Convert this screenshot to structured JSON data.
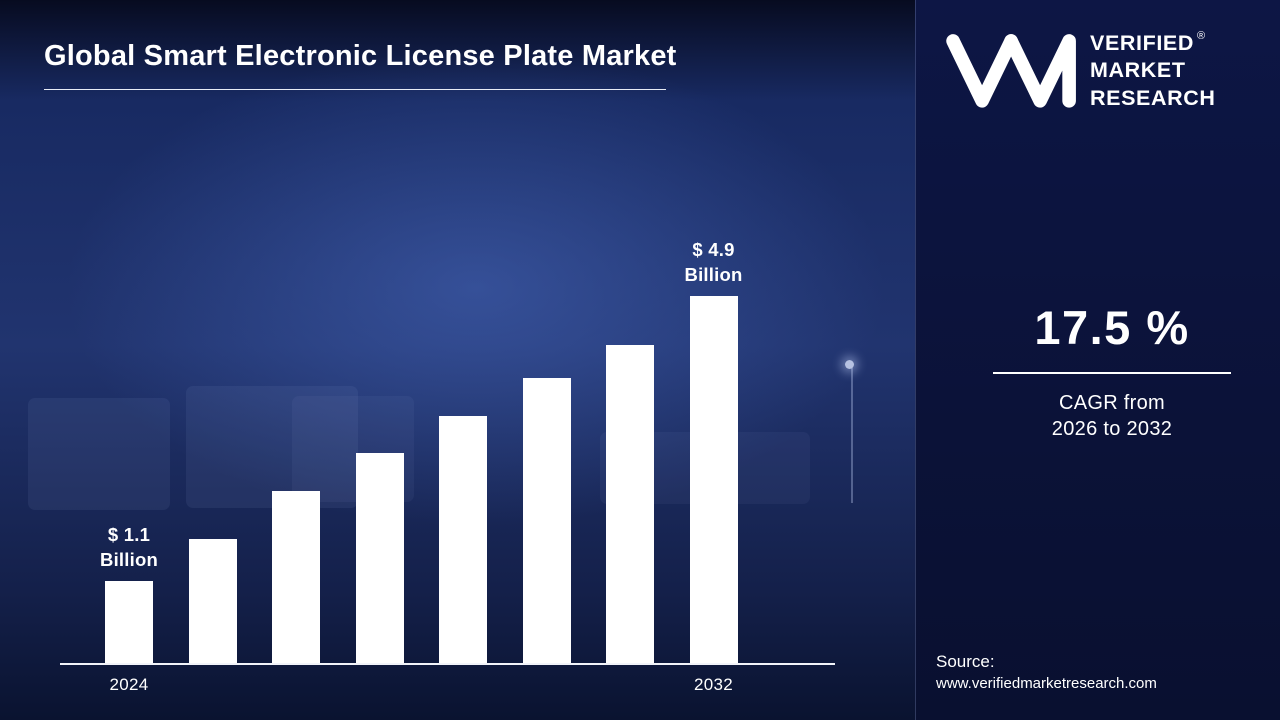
{
  "title": "Global Smart Electronic License Plate Market",
  "chart_data": {
    "type": "bar",
    "title": "Global Smart Electronic License Plate Market",
    "unit": "USD Billion",
    "categories": [
      "2024",
      "",
      "",
      "",
      "",
      "",
      "",
      "2032"
    ],
    "values": [
      1.1,
      1.65,
      2.3,
      2.8,
      3.3,
      3.8,
      4.25,
      4.9
    ],
    "x_tick_labels": [
      "2024",
      "2032"
    ],
    "xlabel": "",
    "ylabel": "",
    "ylim": [
      0,
      4.9
    ],
    "grid": false,
    "legend": false,
    "bar_color": "#ffffff",
    "annotations": [
      {
        "bar_index": 0,
        "line1": "$ 1.1",
        "line2": "Billion"
      },
      {
        "bar_index": 7,
        "line1": "$ 4.9",
        "line2": "Billion"
      }
    ]
  },
  "panel": {
    "logo": {
      "monogram": "vm-monogram",
      "line1": "VERIFIED",
      "line2": "MARKET",
      "line3": "RESEARCH",
      "registered": "®"
    },
    "cagr_value": "17.5 %",
    "cagr_caption_line1": "CAGR from",
    "cagr_caption_line2": "2026 to 2032",
    "source_label": "Source:",
    "source_url": "www.verifiedmarketresearch.com"
  },
  "colors": {
    "left_background": "#1b2c66",
    "right_background": "#0b1238",
    "bar": "#ffffff",
    "text": "#ffffff"
  }
}
